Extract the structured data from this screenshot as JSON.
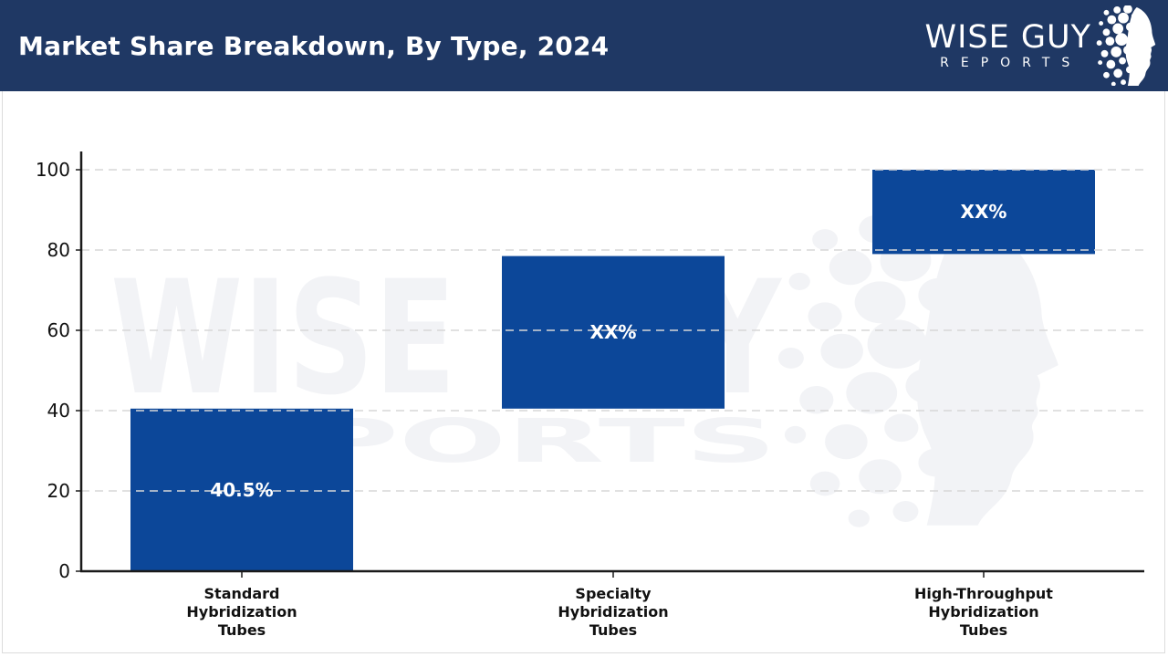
{
  "header": {
    "title": "Market Share Breakdown, By Type, 2024",
    "logo": {
      "line1": "WISE GUY",
      "line2": "REPORTS"
    }
  },
  "watermark": {
    "line1": "WISE GUY",
    "line2": "REPORTS"
  },
  "colors": {
    "header_bg": "#1f3864",
    "bar": "#0c4799",
    "grid": "#d7d7d7",
    "axis": "#1a1a1a",
    "bar_label": "#ffffff",
    "title_text": "#ffffff",
    "watermark": "#f2f3f6"
  },
  "chart_data": {
    "type": "bar",
    "subtype": "waterfall",
    "title": "Market Share Breakdown, By Type, 2024",
    "categories": [
      "Standard Hybridization Tubes",
      "Specialty Hybridization Tubes",
      "High-Throughput Hybridization Tubes"
    ],
    "category_lines": [
      [
        "Standard",
        "Hybridization",
        "Tubes"
      ],
      [
        "Specialty",
        "Hybridization",
        "Tubes"
      ],
      [
        "High-Throughput",
        "Hybridization",
        "Tubes"
      ]
    ],
    "segments": [
      {
        "start": 0,
        "end": 40.5,
        "value_label": "40.5%"
      },
      {
        "start": 40.5,
        "end": 78.5,
        "value_label": "XX%"
      },
      {
        "start": 79,
        "end": 100,
        "value_label": "XX%"
      }
    ],
    "xlabel": "",
    "ylabel": "",
    "ylim": [
      0,
      100
    ],
    "yticks": [
      0,
      20,
      40,
      60,
      80,
      100
    ],
    "grid": "horizontal-dashed",
    "legend": "none"
  }
}
